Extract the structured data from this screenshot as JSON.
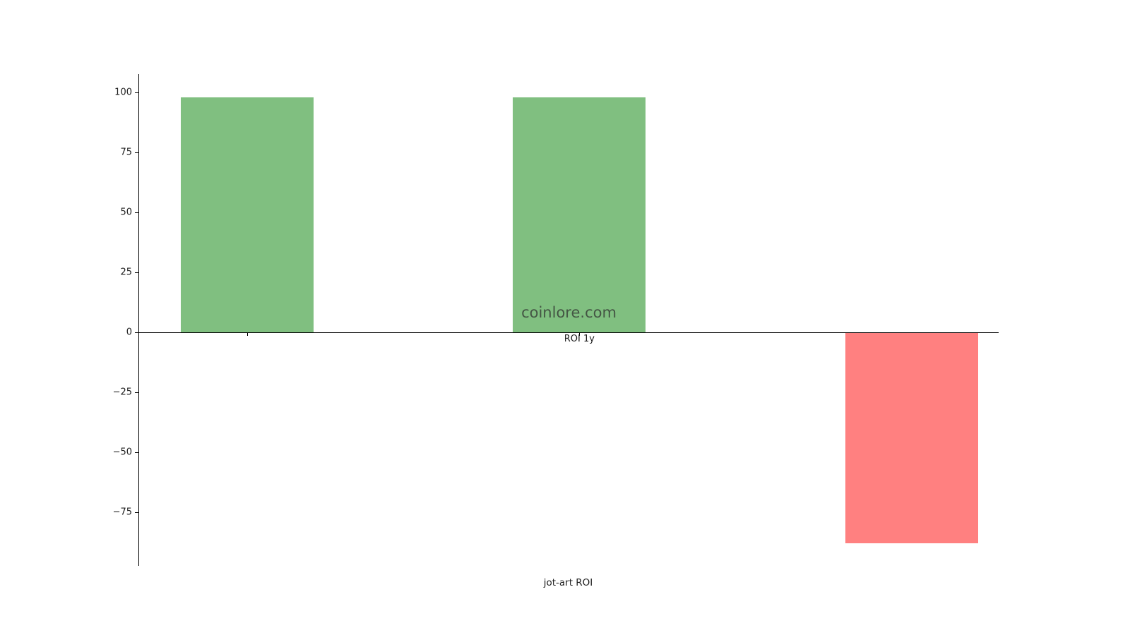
{
  "chart_data": {
    "type": "bar",
    "categories": [
      "",
      "ROI 1y",
      ""
    ],
    "x": [
      0,
      1,
      2
    ],
    "values": [
      98,
      98,
      -88
    ],
    "bar_colors": [
      "#80bf80",
      "#80bf80",
      "#ff8080"
    ],
    "title": "",
    "xlabel": "jot-art ROI",
    "ylabel": "",
    "xlim": [
      -0.325,
      2.262
    ],
    "ylim": [
      -97.4,
      107.6
    ],
    "yticks": [
      100,
      75,
      50,
      25,
      0,
      -25,
      -50,
      -75
    ],
    "bar_width": 0.4,
    "grid": false,
    "legend": null
  },
  "watermark": {
    "text": "coinlore.com"
  },
  "colors": {
    "positive_bar": "#80bf80",
    "negative_bar": "#ff8080",
    "axis": "#000000",
    "text": "#202020"
  }
}
